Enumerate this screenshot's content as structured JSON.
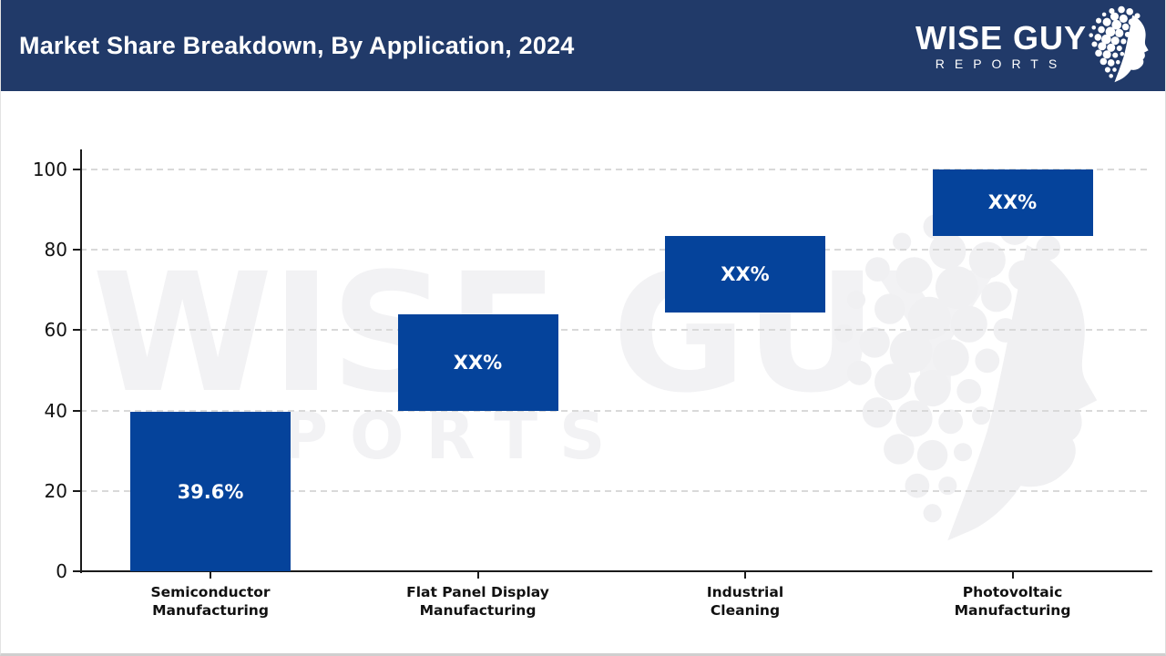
{
  "header": {
    "title": "Market Share Breakdown, By Application, 2024",
    "logo": {
      "name_top": "WISE GUY",
      "name_bottom": "REPORTS"
    }
  },
  "watermark": {
    "text_top": "WISE GUY",
    "text_bottom": "REPORTS"
  },
  "chart_data": {
    "type": "bar",
    "variant": "floating-waterfall",
    "title": "Market Share Breakdown, By Application, 2024",
    "xlabel": "",
    "ylabel": "",
    "ylim": [
      0,
      100
    ],
    "yticks": [
      0,
      20,
      40,
      60,
      80,
      100
    ],
    "grid": "horizontal-dashed",
    "legend": "none",
    "bar_color": "#05439b",
    "value_label_color": "#ffffff",
    "bars": [
      {
        "category_lines": [
          "Semiconductor",
          "Manufacturing"
        ],
        "start": 0,
        "end": 39.6,
        "label": "39.6%"
      },
      {
        "category_lines": [
          "Flat Panel Display",
          "Manufacturing"
        ],
        "start": 40,
        "end": 64,
        "label": "XX%"
      },
      {
        "category_lines": [
          "Industrial",
          "Cleaning"
        ],
        "start": 64.5,
        "end": 83.5,
        "label": "XX%"
      },
      {
        "category_lines": [
          "Photovoltaic",
          "Manufacturing"
        ],
        "start": 83.5,
        "end": 100,
        "label": "XX%"
      }
    ]
  },
  "colors": {
    "header_bg": "#213a69",
    "bar": "#05439b",
    "grid": "#d9d9d9",
    "axis": "#1a1a1a",
    "watermark": "#f2f2f4"
  }
}
